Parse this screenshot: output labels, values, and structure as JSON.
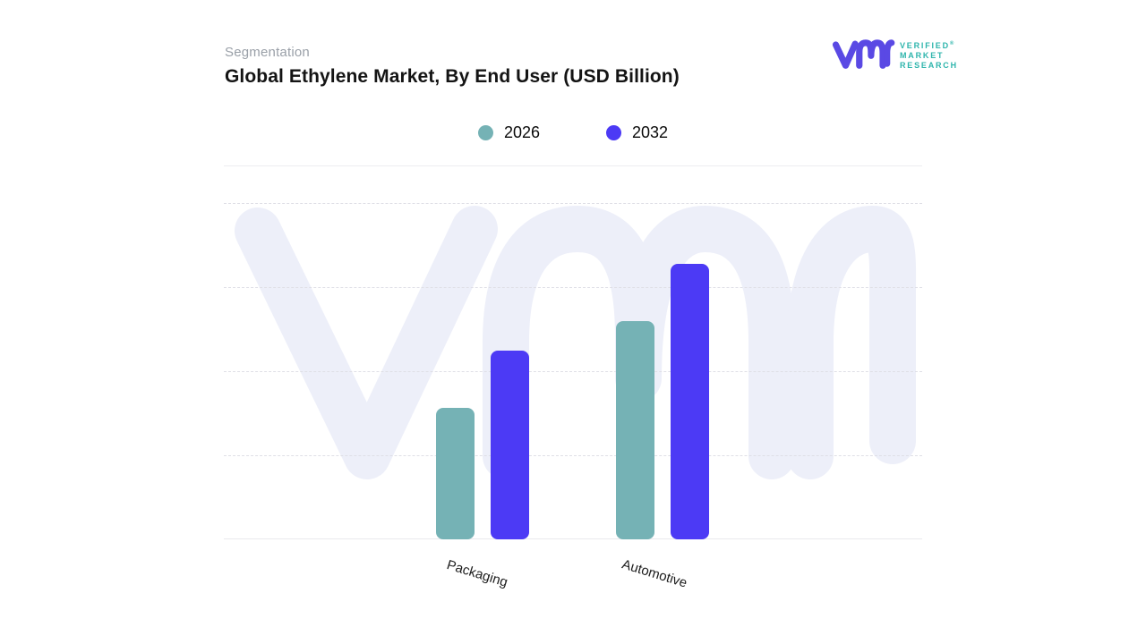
{
  "header": {
    "eyebrow": "Segmentation",
    "title": "Global Ethylene Market, By End User (USD Billion)"
  },
  "logo": {
    "lines": [
      "VERIFIED",
      "MARKET",
      "RESEARCH"
    ],
    "registered_mark": "®",
    "mark_color": "#5a49e4",
    "text_color": "#2eb5ac"
  },
  "legend": [
    {
      "label": "2026",
      "color": "#75b2b5"
    },
    {
      "label": "2032",
      "color": "#4c3af5"
    }
  ],
  "chart_data": {
    "type": "bar",
    "title": "Global Ethylene Market, By End User (USD Billion)",
    "categories": [
      "Packaging",
      "Automotive"
    ],
    "series": [
      {
        "name": "2026",
        "color": "#75b2b5",
        "values": [
          39,
          65
        ]
      },
      {
        "name": "2032",
        "color": "#4c3af5",
        "values": [
          56,
          82
        ]
      }
    ],
    "xlabel": "",
    "ylabel": "",
    "ylim": [
      0,
      100
    ],
    "y_tick_labels_visible": false,
    "grid": "horizontal-dashed",
    "gridline_levels": [
      25,
      50,
      75,
      100
    ],
    "legend_position": "top-center",
    "watermark": "vmr-monogram"
  }
}
